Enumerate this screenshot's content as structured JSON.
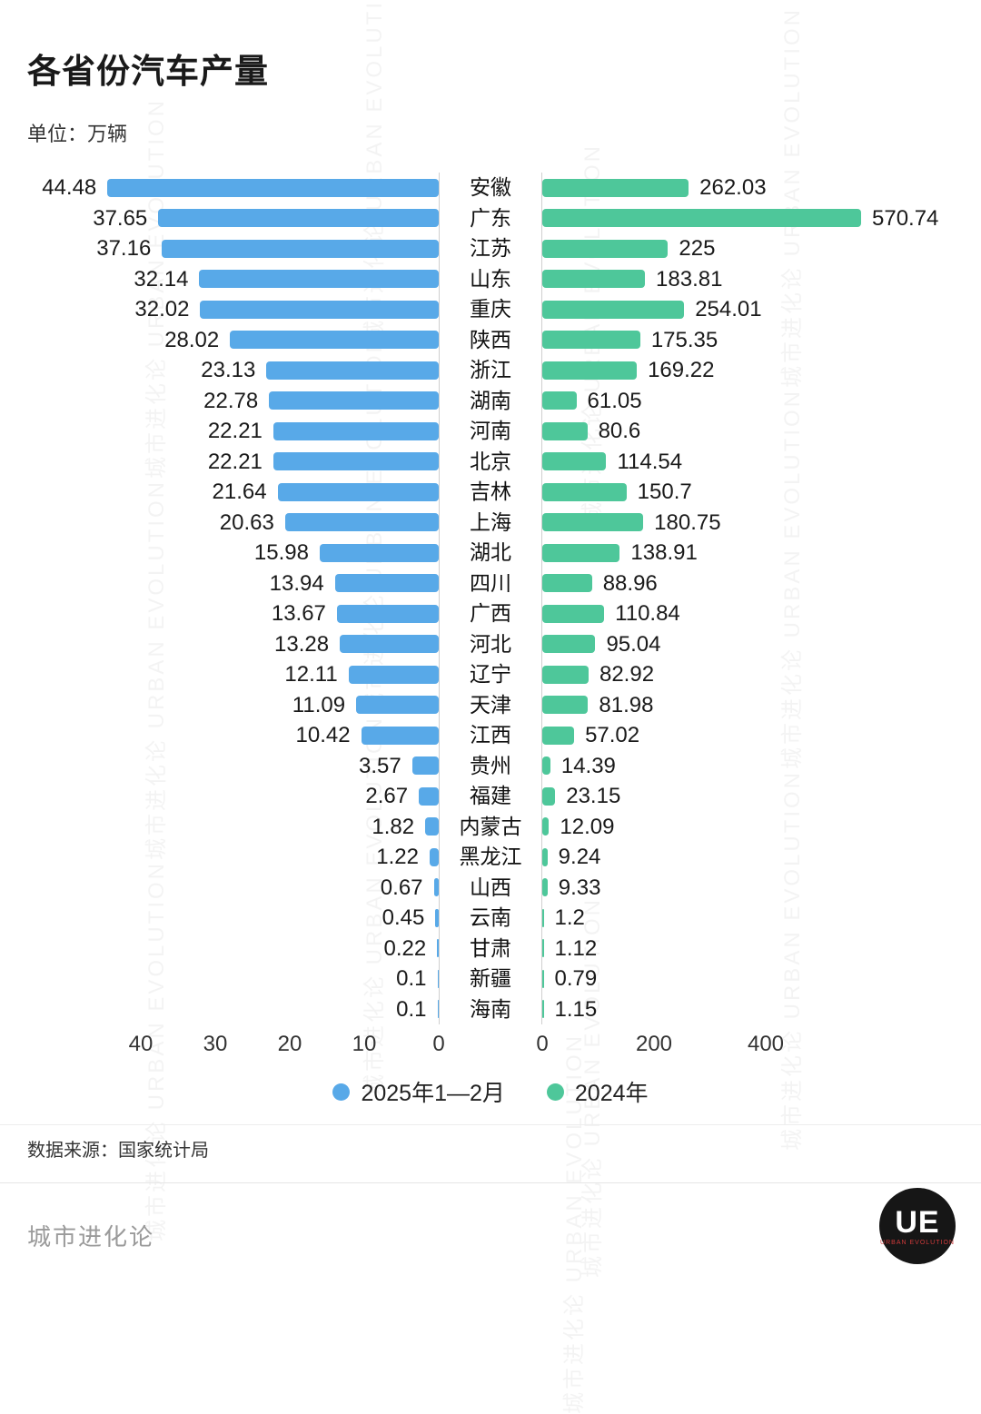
{
  "page": {
    "title": "各省份汽车产量",
    "subtitle": "单位：万辆",
    "source": "数据来源：国家统计局",
    "footer_brand": "城市进化论",
    "watermark": "城市进化论 URBAN EVOLUTION",
    "logo_text": "UE",
    "logo_sub": "URBAN EVOLUTION"
  },
  "colors": {
    "blue": "#58A9E8",
    "green": "#4EC79A"
  },
  "legend": [
    {
      "label": "2025年1—2月",
      "color": "#58A9E8"
    },
    {
      "label": "2024年",
      "color": "#4EC79A"
    }
  ],
  "chart_data": {
    "type": "bar",
    "orientation": "diverging-horizontal",
    "title": "各省份汽车产量",
    "unit": "万辆",
    "categories": [
      "安徽",
      "广东",
      "江苏",
      "山东",
      "重庆",
      "陕西",
      "浙江",
      "湖南",
      "河南",
      "北京",
      "吉林",
      "上海",
      "湖北",
      "四川",
      "广西",
      "河北",
      "辽宁",
      "天津",
      "江西",
      "贵州",
      "福建",
      "内蒙古",
      "黑龙江",
      "山西",
      "云南",
      "甘肃",
      "新疆",
      "海南"
    ],
    "series": [
      {
        "name": "2025年1—2月",
        "side": "left",
        "values": [
          44.48,
          37.65,
          37.16,
          32.14,
          32.02,
          28.02,
          23.13,
          22.78,
          22.21,
          22.21,
          21.64,
          20.63,
          15.98,
          13.94,
          13.67,
          13.28,
          12.11,
          11.09,
          10.42,
          3.57,
          2.67,
          1.82,
          1.22,
          0.67,
          0.45,
          0.22,
          0.1,
          0.1
        ]
      },
      {
        "name": "2024年",
        "side": "right",
        "values": [
          262.03,
          570.74,
          225,
          183.81,
          254.01,
          175.35,
          169.22,
          61.05,
          80.6,
          114.54,
          150.7,
          180.75,
          138.91,
          88.96,
          110.84,
          95.04,
          82.92,
          81.98,
          57.02,
          14.39,
          23.15,
          12.09,
          9.24,
          9.33,
          1.2,
          1.12,
          0.79,
          1.15
        ]
      }
    ],
    "left_axis_ticks": [
      40,
      30,
      20,
      10,
      0
    ],
    "right_axis_ticks": [
      0,
      200,
      400
    ],
    "left_axis_range": [
      0,
      48
    ],
    "right_axis_range": [
      0,
      580
    ],
    "grid": false,
    "legend_position": "bottom"
  }
}
